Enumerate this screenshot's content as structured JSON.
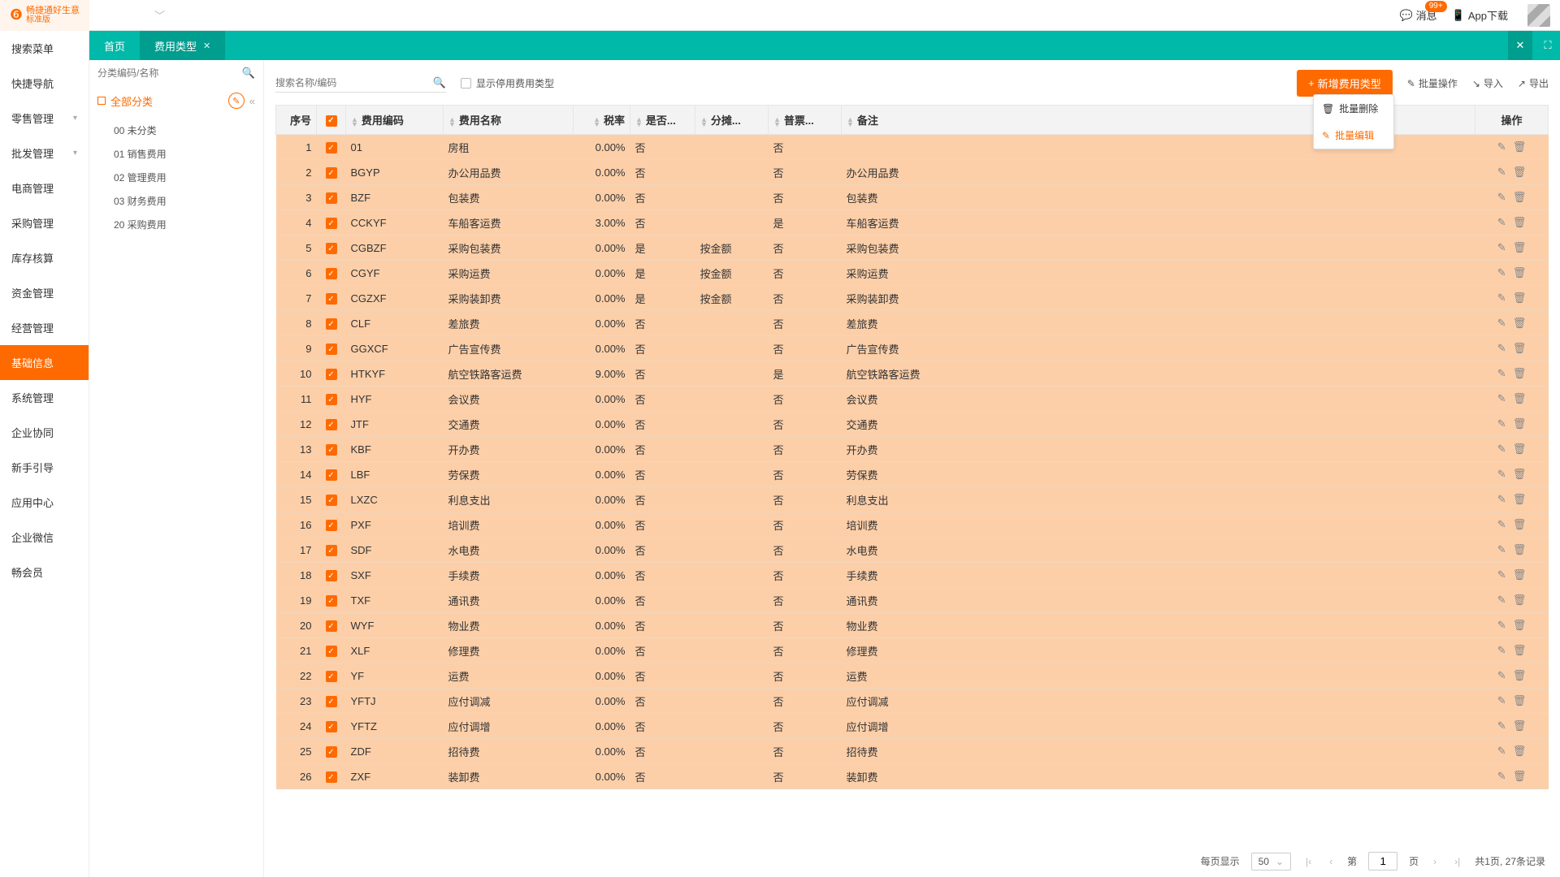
{
  "header": {
    "logo_text": "畅捷通好生意",
    "logo_edition": "标准版",
    "msg_label": "消息",
    "msg_badge": "99+",
    "download_label": "App下载"
  },
  "left_nav": [
    {
      "label": "搜索菜单",
      "caret": false
    },
    {
      "label": "快捷导航",
      "caret": false
    },
    {
      "label": "零售管理",
      "caret": true
    },
    {
      "label": "批发管理",
      "caret": true
    },
    {
      "label": "电商管理",
      "caret": false
    },
    {
      "label": "采购管理",
      "caret": false
    },
    {
      "label": "库存核算",
      "caret": false
    },
    {
      "label": "资金管理",
      "caret": false
    },
    {
      "label": "经营管理",
      "caret": false
    },
    {
      "label": "基础信息",
      "caret": false,
      "active": true
    },
    {
      "label": "系统管理",
      "caret": false
    },
    {
      "label": "企业协同",
      "caret": false
    },
    {
      "label": "新手引导",
      "caret": false
    },
    {
      "label": "应用中心",
      "caret": false
    },
    {
      "label": "企业微信",
      "caret": false
    },
    {
      "label": "畅会员",
      "caret": false
    }
  ],
  "tabs": {
    "home": "首页",
    "current": "费用类型"
  },
  "cat_panel": {
    "search_placeholder": "分类编码/名称",
    "all_label": "全部分类",
    "items": [
      {
        "label": "00 未分类"
      },
      {
        "label": "01 销售费用"
      },
      {
        "label": "02 管理费用"
      },
      {
        "label": "03 财务费用"
      },
      {
        "label": "20 采购费用"
      }
    ]
  },
  "toolbar": {
    "search_placeholder": "搜索名称/编码",
    "show_disabled": "显示停用费用类型",
    "add_btn": "新增费用类型",
    "bulk_btn": "批量操作",
    "import_btn": "导入",
    "export_btn": "导出",
    "bulk_delete": "批量删除",
    "bulk_edit": "批量编辑"
  },
  "columns": {
    "idx": "序号",
    "code": "费用编码",
    "name": "费用名称",
    "rate": "税率",
    "isX": "是否...",
    "alloc": "分摊...",
    "bill": "普票...",
    "remark": "备注",
    "op": "操作"
  },
  "rows": [
    {
      "i": 1,
      "code": "01",
      "name": "房租",
      "rate": "0.00%",
      "a": "否",
      "alloc": "",
      "b": "否",
      "remark": ""
    },
    {
      "i": 2,
      "code": "BGYP",
      "name": "办公用品费",
      "rate": "0.00%",
      "a": "否",
      "alloc": "",
      "b": "否",
      "remark": "办公用品费"
    },
    {
      "i": 3,
      "code": "BZF",
      "name": "包装费",
      "rate": "0.00%",
      "a": "否",
      "alloc": "",
      "b": "否",
      "remark": "包装费"
    },
    {
      "i": 4,
      "code": "CCKYF",
      "name": "车船客运费",
      "rate": "3.00%",
      "a": "否",
      "alloc": "",
      "b": "是",
      "remark": "车船客运费"
    },
    {
      "i": 5,
      "code": "CGBZF",
      "name": "采购包装费",
      "rate": "0.00%",
      "a": "是",
      "alloc": "按金额",
      "b": "否",
      "remark": "采购包装费"
    },
    {
      "i": 6,
      "code": "CGYF",
      "name": "采购运费",
      "rate": "0.00%",
      "a": "是",
      "alloc": "按金额",
      "b": "否",
      "remark": "采购运费"
    },
    {
      "i": 7,
      "code": "CGZXF",
      "name": "采购装卸费",
      "rate": "0.00%",
      "a": "是",
      "alloc": "按金额",
      "b": "否",
      "remark": "采购装卸费"
    },
    {
      "i": 8,
      "code": "CLF",
      "name": "差旅费",
      "rate": "0.00%",
      "a": "否",
      "alloc": "",
      "b": "否",
      "remark": "差旅费"
    },
    {
      "i": 9,
      "code": "GGXCF",
      "name": "广告宣传费",
      "rate": "0.00%",
      "a": "否",
      "alloc": "",
      "b": "否",
      "remark": "广告宣传费"
    },
    {
      "i": 10,
      "code": "HTKYF",
      "name": "航空铁路客运费",
      "rate": "9.00%",
      "a": "否",
      "alloc": "",
      "b": "是",
      "remark": "航空铁路客运费"
    },
    {
      "i": 11,
      "code": "HYF",
      "name": "会议费",
      "rate": "0.00%",
      "a": "否",
      "alloc": "",
      "b": "否",
      "remark": "会议费"
    },
    {
      "i": 12,
      "code": "JTF",
      "name": "交通费",
      "rate": "0.00%",
      "a": "否",
      "alloc": "",
      "b": "否",
      "remark": "交通费"
    },
    {
      "i": 13,
      "code": "KBF",
      "name": "开办费",
      "rate": "0.00%",
      "a": "否",
      "alloc": "",
      "b": "否",
      "remark": "开办费"
    },
    {
      "i": 14,
      "code": "LBF",
      "name": "劳保费",
      "rate": "0.00%",
      "a": "否",
      "alloc": "",
      "b": "否",
      "remark": "劳保费"
    },
    {
      "i": 15,
      "code": "LXZC",
      "name": "利息支出",
      "rate": "0.00%",
      "a": "否",
      "alloc": "",
      "b": "否",
      "remark": "利息支出"
    },
    {
      "i": 16,
      "code": "PXF",
      "name": "培训费",
      "rate": "0.00%",
      "a": "否",
      "alloc": "",
      "b": "否",
      "remark": "培训费"
    },
    {
      "i": 17,
      "code": "SDF",
      "name": "水电费",
      "rate": "0.00%",
      "a": "否",
      "alloc": "",
      "b": "否",
      "remark": "水电费"
    },
    {
      "i": 18,
      "code": "SXF",
      "name": "手续费",
      "rate": "0.00%",
      "a": "否",
      "alloc": "",
      "b": "否",
      "remark": "手续费"
    },
    {
      "i": 19,
      "code": "TXF",
      "name": "通讯费",
      "rate": "0.00%",
      "a": "否",
      "alloc": "",
      "b": "否",
      "remark": "通讯费"
    },
    {
      "i": 20,
      "code": "WYF",
      "name": "物业费",
      "rate": "0.00%",
      "a": "否",
      "alloc": "",
      "b": "否",
      "remark": "物业费"
    },
    {
      "i": 21,
      "code": "XLF",
      "name": "修理费",
      "rate": "0.00%",
      "a": "否",
      "alloc": "",
      "b": "否",
      "remark": "修理费"
    },
    {
      "i": 22,
      "code": "YF",
      "name": "运费",
      "rate": "0.00%",
      "a": "否",
      "alloc": "",
      "b": "否",
      "remark": "运费"
    },
    {
      "i": 23,
      "code": "YFTJ",
      "name": "应付调减",
      "rate": "0.00%",
      "a": "否",
      "alloc": "",
      "b": "否",
      "remark": "应付调减"
    },
    {
      "i": 24,
      "code": "YFTZ",
      "name": "应付调增",
      "rate": "0.00%",
      "a": "否",
      "alloc": "",
      "b": "否",
      "remark": "应付调增"
    },
    {
      "i": 25,
      "code": "ZDF",
      "name": "招待费",
      "rate": "0.00%",
      "a": "否",
      "alloc": "",
      "b": "否",
      "remark": "招待费"
    },
    {
      "i": 26,
      "code": "ZXF",
      "name": "装卸费",
      "rate": "0.00%",
      "a": "否",
      "alloc": "",
      "b": "否",
      "remark": "装卸费"
    }
  ],
  "pager": {
    "per_page_label": "每页显示",
    "per_page_value": "50",
    "page_prefix": "第",
    "page_value": "1",
    "page_suffix": "页",
    "summary": "共1页, 27条记录"
  },
  "colors": {
    "primary": "#ff6a00",
    "teal": "#00b9a8",
    "teal_dark": "#009e8f",
    "row_selected": "#fccfa9",
    "header_bg": "#f3f3f3"
  }
}
